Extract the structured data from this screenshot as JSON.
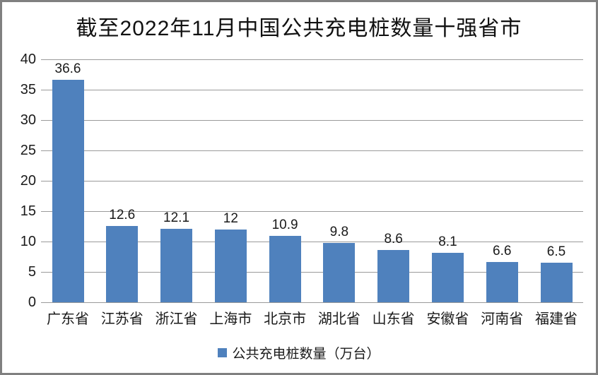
{
  "chart_data": {
    "type": "bar",
    "title": "截至2022年11月中国公共充电桩数量十强省市",
    "categories": [
      "广东省",
      "江苏省",
      "浙江省",
      "上海市",
      "北京市",
      "湖北省",
      "山东省",
      "安徽省",
      "河南省",
      "福建省"
    ],
    "values": [
      36.6,
      12.6,
      12.1,
      12,
      10.9,
      9.8,
      8.6,
      8.1,
      6.6,
      6.5
    ],
    "value_labels": [
      "36.6",
      "12.6",
      "12.1",
      "12",
      "10.9",
      "9.8",
      "8.6",
      "8.1",
      "6.6",
      "6.5"
    ],
    "legend": "公共充电桩数量（万台）",
    "ylim": [
      0,
      40
    ],
    "ytick_step": 5,
    "ytick_labels": [
      "0",
      "5",
      "10",
      "15",
      "20",
      "25",
      "30",
      "35",
      "40"
    ],
    "grid": true,
    "legend_position": "bottom",
    "colors": {
      "bar": "#4F81BD",
      "gridline": "#9a9a9a",
      "frame_border": "#808080",
      "text": "#1a1a1a",
      "background": "#ffffff"
    }
  }
}
